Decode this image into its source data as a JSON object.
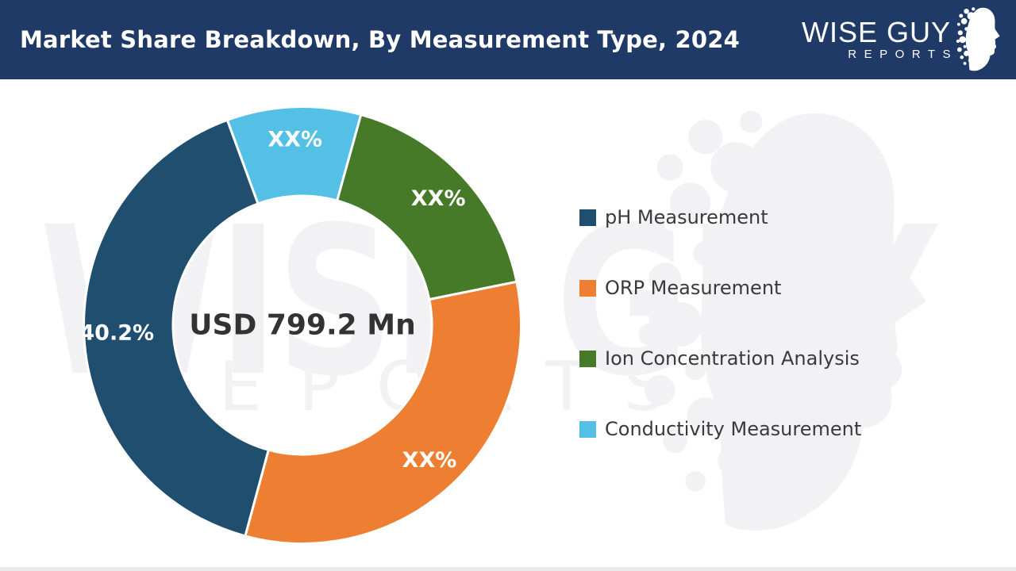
{
  "header": {
    "title": "Market Share Breakdown, By Measurement Type, 2024",
    "logo": {
      "line1": "WISE GUY",
      "line2": "REPORTS"
    }
  },
  "watermark": {
    "line1": "WISE GUY",
    "line2": "REPORTS"
  },
  "chart_data": {
    "type": "pie",
    "subtype": "donut",
    "title": "Market Share Breakdown, By Measurement Type, 2024",
    "center_label": "USD 799.2 Mn",
    "units": "USD Mn",
    "legend_position": "right",
    "start_angle_deg_from_top": -20.1,
    "direction": "clockwise",
    "inner_radius_ratio": 0.59,
    "segments": [
      {
        "label": "pH Measurement",
        "value_label": "40.2%",
        "pct_est": 40.2,
        "color": "#1F4E6F"
      },
      {
        "label": "ORP Measurement",
        "value_label": "XX%",
        "pct_est": 32.4,
        "color": "#EE7E32"
      },
      {
        "label": "Ion Concentration Analysis",
        "value_label": "XX%",
        "pct_est": 17.5,
        "color": "#467A28"
      },
      {
        "label": "Conductivity Measurement",
        "value_label": "XX%",
        "pct_est": 9.9,
        "color": "#55C0E6"
      }
    ],
    "draw_order_clockwise_from_top": [
      "Conductivity Measurement",
      "Ion Concentration Analysis",
      "ORP Measurement",
      "pH Measurement"
    ]
  },
  "colors": {
    "header_bg": "#203A68",
    "content_bg": "#FFFFFF",
    "footer_bg": "#E9E9EB",
    "text_dark": "#3A3A3A",
    "segment_label": "#FFFFFF",
    "watermark": "#F2F2F5"
  }
}
